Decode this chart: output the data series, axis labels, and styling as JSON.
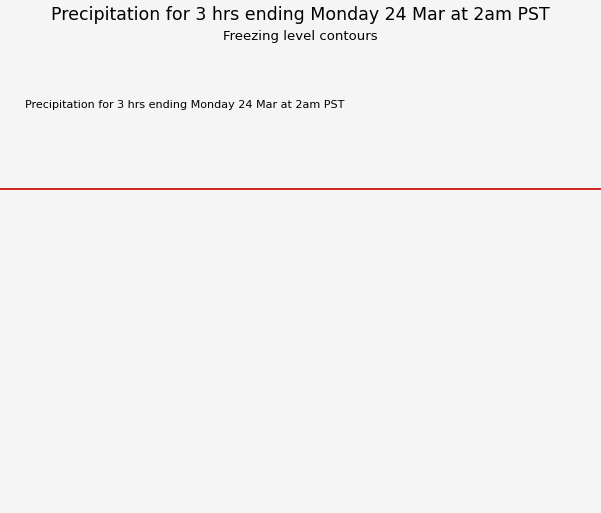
{
  "title": "Precipitation for 3 hrs ending Monday 24 Mar at 2am PST",
  "subtitle": "Freezing level contours",
  "title_fontsize": 12.5,
  "subtitle_fontsize": 9.5,
  "fig_width": 6.01,
  "fig_height": 5.13,
  "dpi": 100,
  "header_bg": "#f5f5f5",
  "ocean_color": "#cdd8ef",
  "border_color": "#888888",
  "title_color": "#000000",
  "contour_color": "#cc0000",
  "land_dark": "#888880",
  "land_mid": "#9a9a90",
  "land_light": "#b0b0a5",
  "precip_light": "#b8c8e8",
  "precip_mid": "#a0b0d8"
}
